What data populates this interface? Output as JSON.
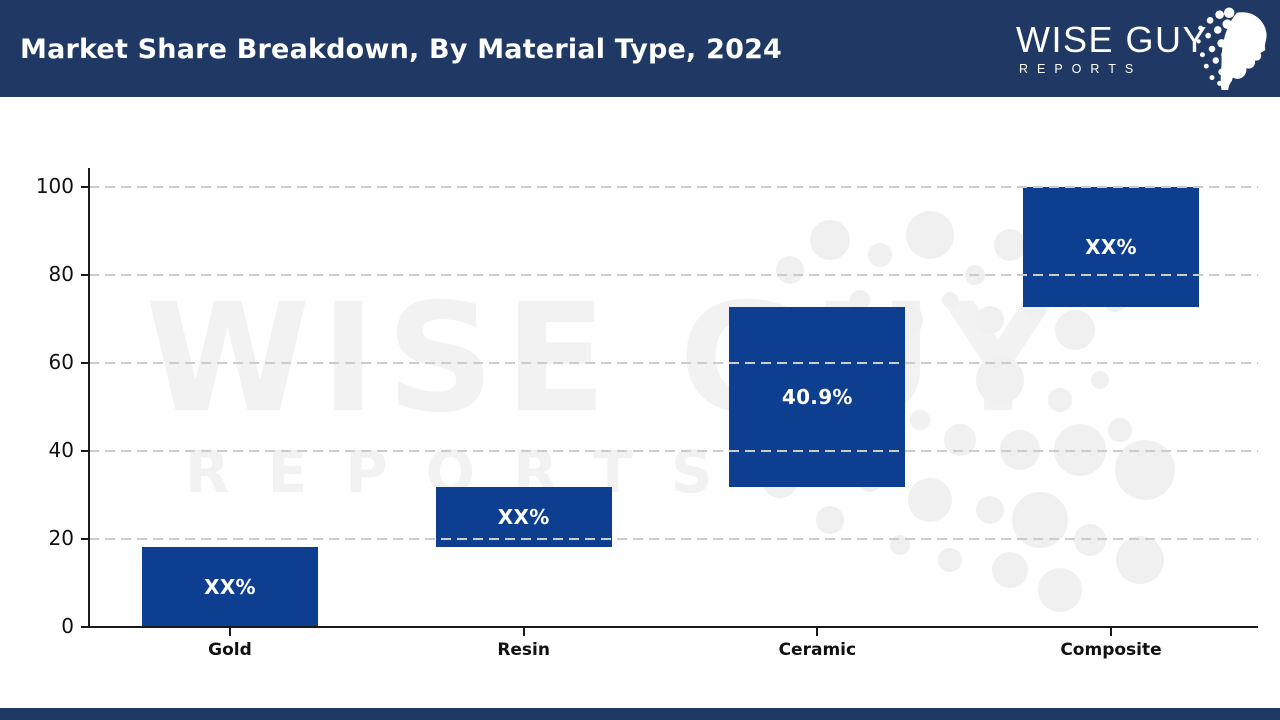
{
  "header": {
    "title": "Market Share Breakdown, By Material Type, 2024",
    "logo": {
      "name": "WISE GUY",
      "tagline": "REPORTS"
    }
  },
  "watermark": {
    "line1": "WISE GUY",
    "line2": "REPORTS"
  },
  "chart_data": {
    "type": "bar",
    "variant": "floating-waterfall",
    "title": "Market Share Breakdown, By Material Type, 2024",
    "categories": [
      "Gold",
      "Resin",
      "Ceramic",
      "Composite"
    ],
    "series": [
      {
        "name": "Market share (%)",
        "segments": [
          {
            "category": "Gold",
            "from": 0,
            "to": 18.2,
            "value": 18.2,
            "label": "XX%"
          },
          {
            "category": "Resin",
            "from": 18.2,
            "to": 31.8,
            "value": 13.6,
            "label": "XX%"
          },
          {
            "category": "Ceramic",
            "from": 31.8,
            "to": 72.7,
            "value": 40.9,
            "label": "40.9%"
          },
          {
            "category": "Composite",
            "from": 72.7,
            "to": 100,
            "value": 27.3,
            "label": "XX%"
          }
        ]
      }
    ],
    "xlabel": "",
    "ylabel": "",
    "ylim": [
      0,
      100
    ],
    "yticks": [
      0,
      20,
      40,
      60,
      80,
      100
    ],
    "grid": "horizontal dashed, drawn above bars",
    "legend": null
  },
  "colors": {
    "header_bg": "#1f3864",
    "footer_bg": "#1f3864",
    "bar": "#0d3e8f",
    "bar_label": "#ffffff",
    "axis": "#1a1a1a",
    "grid": "#cccccc",
    "watermark": "#f2f2f2",
    "title_text": "#ffffff"
  }
}
